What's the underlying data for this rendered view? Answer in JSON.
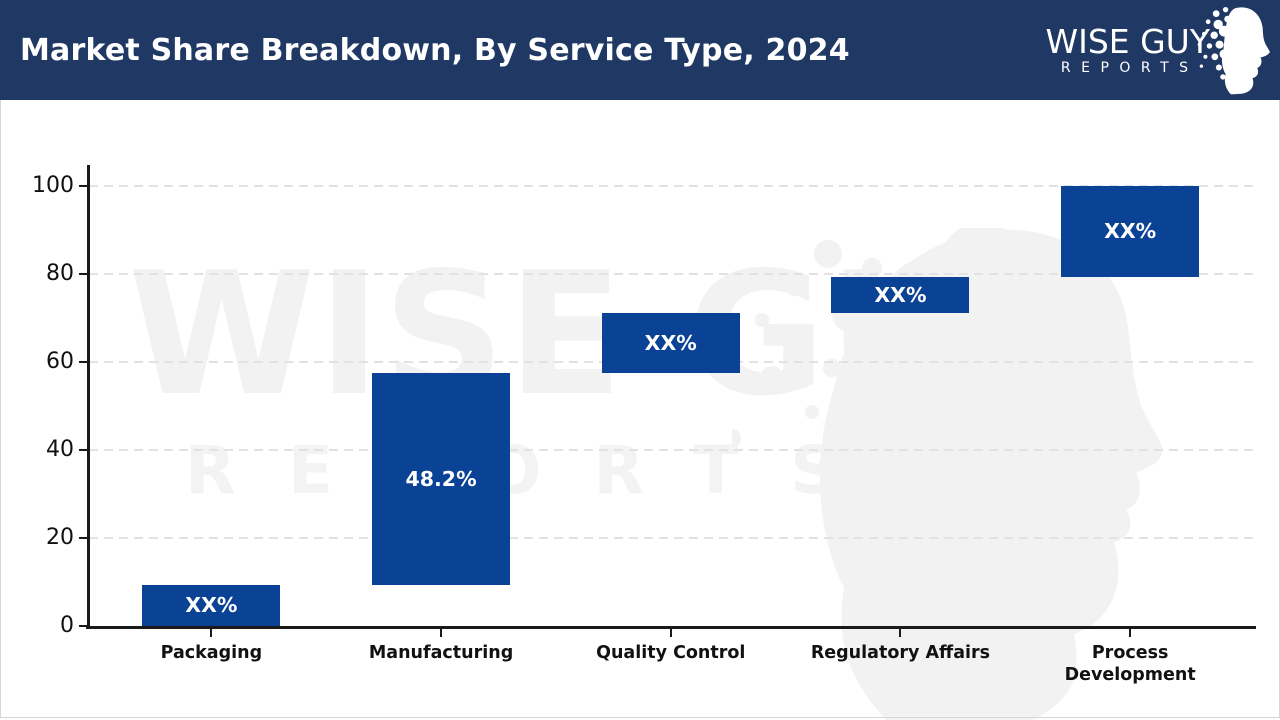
{
  "header": {
    "title": "Market Share Breakdown, By Service Type, 2024",
    "logo": {
      "line1": "WISE GUY",
      "line2": "REPORTS"
    }
  },
  "watermark": {
    "line1": "WISE GUY",
    "line2": "REPORTS"
  },
  "chart_data": {
    "type": "bar",
    "subtype": "floating-waterfall",
    "title": "Market Share Breakdown, By Service Type, 2024",
    "categories": [
      "Packaging",
      "Manufacturing",
      "Quality Control",
      "Regulatory Affairs",
      "Process\nDevelopment"
    ],
    "segments": [
      {
        "category": "Packaging",
        "start": 0,
        "end": 9.4,
        "label": "XX%"
      },
      {
        "category": "Manufacturing",
        "start": 9.4,
        "end": 57.6,
        "label": "48.2%"
      },
      {
        "category": "Quality Control",
        "start": 57.6,
        "end": 71.2,
        "label": "XX%"
      },
      {
        "category": "Regulatory Affairs",
        "start": 71.2,
        "end": 79.4,
        "label": "XX%"
      },
      {
        "category": "Process Development",
        "start": 79.4,
        "end": 100,
        "label": "XX%"
      }
    ],
    "yticks": [
      0,
      20,
      40,
      60,
      80,
      100
    ],
    "ylim": [
      0,
      105
    ],
    "xlabel": "",
    "ylabel": "",
    "grid": "horizontal-dashed",
    "legend": "none",
    "colors": {
      "bar": "#0a4296",
      "bar_label": "#ffffff",
      "axis": "#1a1a1a",
      "grid": "#e2e2e2",
      "tick_label": "#111111",
      "header_bg": "#203864",
      "header_text": "#ffffff",
      "watermark": "#f2f2f2"
    }
  }
}
